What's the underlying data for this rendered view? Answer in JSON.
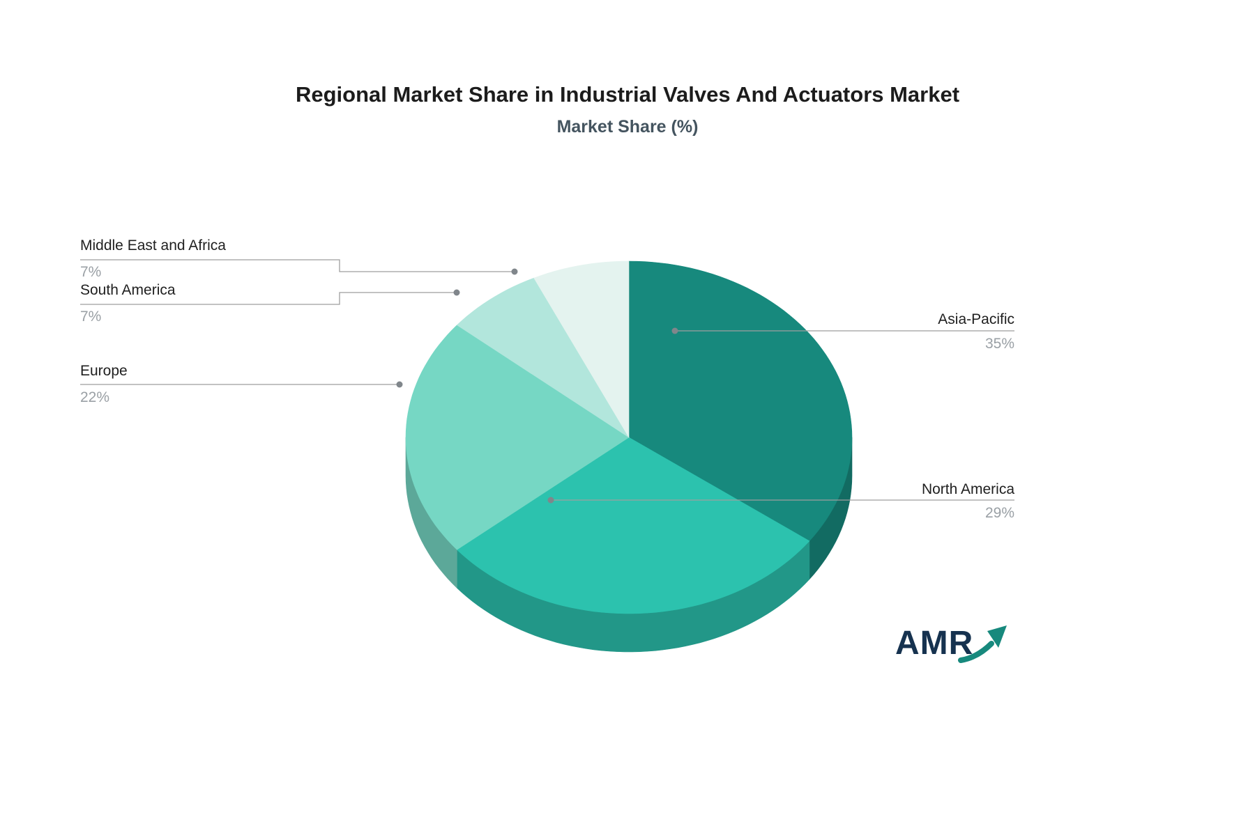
{
  "header": {
    "title": "Regional Market Share in Industrial Valves And Actuators Market",
    "subtitle": "Market Share (%)"
  },
  "chart_data": {
    "type": "pie",
    "title": "Regional Market Share in Industrial Valves And Actuators Market",
    "subtitle": "Market Share (%)",
    "units": "%",
    "start_angle_deg": 0,
    "direction": "clockwise",
    "legend_position": "none",
    "label_style": "leader-lines",
    "slices": [
      {
        "label": "Asia-Pacific",
        "value": 35,
        "value_label": "35%",
        "color": "#17897d"
      },
      {
        "label": "North America",
        "value": 29,
        "value_label": "29%",
        "color": "#2cc2ae"
      },
      {
        "label": "Europe",
        "value": 22,
        "value_label": "22%",
        "color": "#76d7c4"
      },
      {
        "label": "South America",
        "value": 7,
        "value_label": "7%",
        "color": "#b2e6dc"
      },
      {
        "label": "Middle East and Africa",
        "value": 7,
        "value_label": "7%",
        "color": "#e4f3ef"
      }
    ],
    "leader_line_color": "#9e9e9e",
    "leader_dot_color": "#80868b"
  },
  "logo": {
    "text": "AMR",
    "color": "#16324f",
    "arrow_color": "#17897d"
  }
}
